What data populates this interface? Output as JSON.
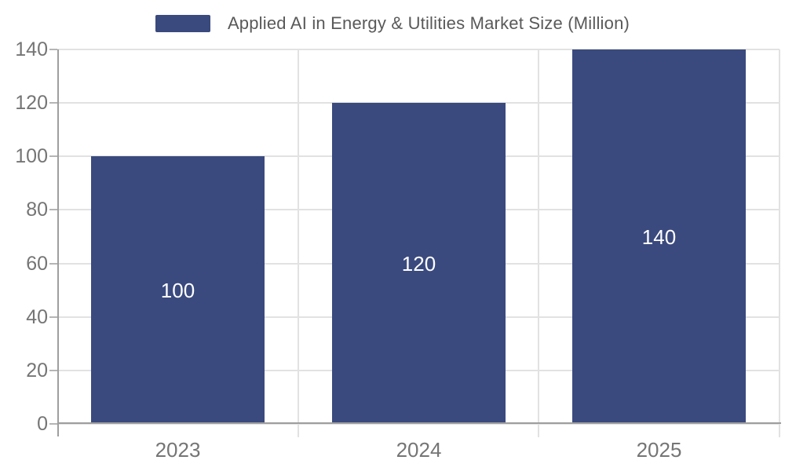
{
  "chart_data": {
    "type": "bar",
    "title": "Applied AI in Energy & Utilities Market Size (Million)",
    "categories": [
      "2023",
      "2024",
      "2025"
    ],
    "values": [
      100,
      120,
      140
    ],
    "xlabel": "",
    "ylabel": "",
    "ylim": [
      0,
      140
    ],
    "ytick_step": 20,
    "ytick_labels": [
      "0",
      "20",
      "40",
      "60",
      "80",
      "100",
      "120",
      "140"
    ],
    "grid": true,
    "legend_position": "top-center",
    "bar_labels": [
      "100",
      "120",
      "140"
    ],
    "colors": {
      "bar": "#3A4A7E",
      "bar_label": "#ffffff",
      "legend_text": "#595959",
      "axis_tick_text": "#757575",
      "gridline": "#e2e2e2",
      "axis_line": "#9e9e9e",
      "tick_mark": "#b5b5b5"
    }
  }
}
